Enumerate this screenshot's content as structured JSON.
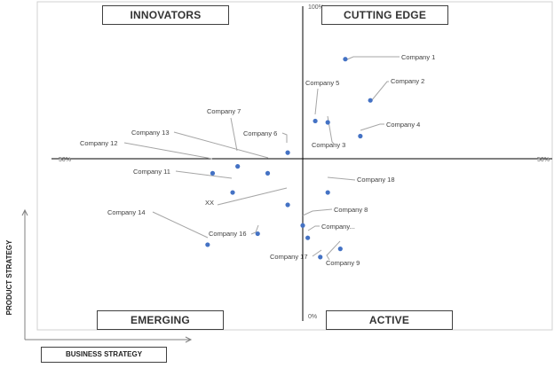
{
  "chart_data": {
    "type": "scatter",
    "quadrants": {
      "top_left": "INNOVATORS",
      "top_right": "CUTTING EDGE",
      "bottom_left": "EMERGING",
      "bottom_right": "ACTIVE"
    },
    "xlabel": "BUSINESS STRATEGY",
    "ylabel": "PRODUCT STRATEGY",
    "x_tick_left": "50%",
    "x_tick_right": "50%",
    "y_tick_top": "100%",
    "y_tick_bottom": "0%",
    "xlim": [
      -50,
      50
    ],
    "ylim": [
      0,
      100
    ],
    "grid": false,
    "marker_color": "#4472c4",
    "leader_color": "#a6a6a6",
    "points": [
      {
        "name": "Company 1",
        "x": 8.5,
        "y": 93
      },
      {
        "name": "Company 2",
        "x": 13.5,
        "y": 78
      },
      {
        "name": "Company 5",
        "x": 2.5,
        "y": 70.5
      },
      {
        "name": "Company 3",
        "x": 5.0,
        "y": 70
      },
      {
        "name": "Company 4",
        "x": 11.5,
        "y": 65
      },
      {
        "name": "Company 6",
        "x": -3.0,
        "y": 59
      },
      {
        "name": "Company 7",
        "x": -13.0,
        "y": 54
      },
      {
        "name": "Company 13",
        "x": -7.0,
        "y": 51.5
      },
      {
        "name": "Company 12",
        "x": -18.0,
        "y": 51.5
      },
      {
        "name": "Company 11",
        "x": -14.0,
        "y": 44.5
      },
      {
        "name": "Company 18",
        "x": 5.0,
        "y": 44.5
      },
      {
        "name": "XX",
        "x": -3.0,
        "y": 40
      },
      {
        "name": "Company 8",
        "x": 0.0,
        "y": 32.5
      },
      {
        "name": "Company 16",
        "x": -9.0,
        "y": 29.5
      },
      {
        "name": "Company...",
        "x": 1.0,
        "y": 28
      },
      {
        "name": "Company 14",
        "x": -19.0,
        "y": 25.5
      },
      {
        "name": "Company 9",
        "x": 7.5,
        "y": 24
      },
      {
        "name": "Company 17",
        "x": 3.5,
        "y": 21
      }
    ]
  }
}
